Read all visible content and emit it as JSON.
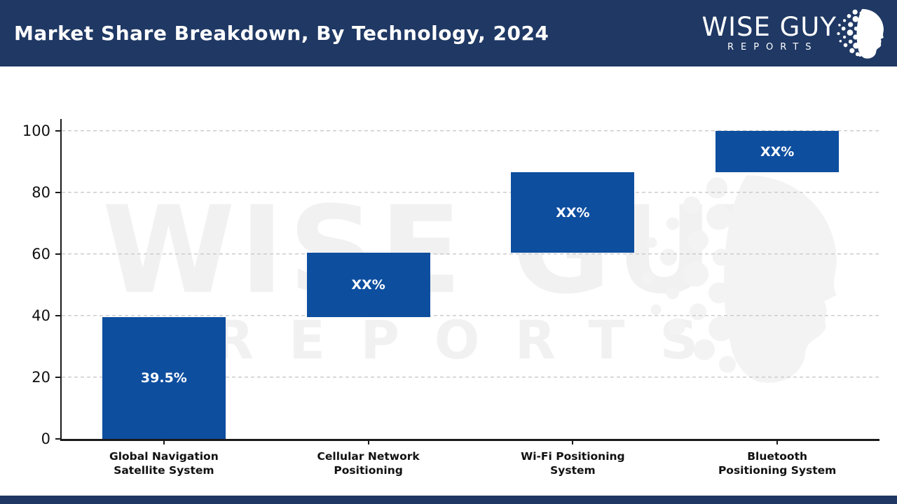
{
  "header": {
    "title": "Market Share Breakdown, By Technology, 2024",
    "logo": {
      "line1": "WISE GUY",
      "line2": "REPORTS"
    }
  },
  "watermark": {
    "line1": "WISE GUY",
    "line2": "REPORTS"
  },
  "colors": {
    "header_bg": "#1f3864",
    "footer_bg": "#1f3864",
    "bar": "#0d4e9f",
    "bar_label": "#ffffff",
    "grid": "#cccccc",
    "axis": "#1a1a1a",
    "title_text": "#ffffff",
    "watermark": "#f1f1f1"
  },
  "chart_data": {
    "type": "bar",
    "subtype": "waterfall-stacked",
    "title": "Market Share Breakdown, By Technology, 2024",
    "categories": [
      "Global Navigation Satellite System",
      "Cellular Network Positioning",
      "Wi-Fi Positioning System",
      "Bluetooth Positioning System"
    ],
    "category_lines": [
      [
        "Global Navigation",
        "Satellite System"
      ],
      [
        "Cellular Network",
        "Positioning"
      ],
      [
        "Wi-Fi Positioning",
        "System"
      ],
      [
        "Bluetooth",
        "Positioning System"
      ]
    ],
    "segments": [
      {
        "category": "Global Navigation Satellite System",
        "start": 0,
        "end": 39.5,
        "label": "39.5%",
        "value": 39.5
      },
      {
        "category": "Cellular Network Positioning",
        "start": 39.5,
        "end": 60.5,
        "label": "XX%",
        "value_estimate": 21
      },
      {
        "category": "Wi-Fi Positioning System",
        "start": 60.5,
        "end": 86.5,
        "label": "XX%",
        "value_estimate": 26
      },
      {
        "category": "Bluetooth Positioning System",
        "start": 86.5,
        "end": 100,
        "label": "XX%",
        "value_estimate": 13.5
      }
    ],
    "yticks": [
      0,
      20,
      40,
      60,
      80,
      100
    ],
    "ylim": [
      0,
      100
    ],
    "xlabel": "",
    "ylabel": "",
    "grid": "horizontal-dashed",
    "legend": "none",
    "bar_color": "#0d4e9f"
  }
}
